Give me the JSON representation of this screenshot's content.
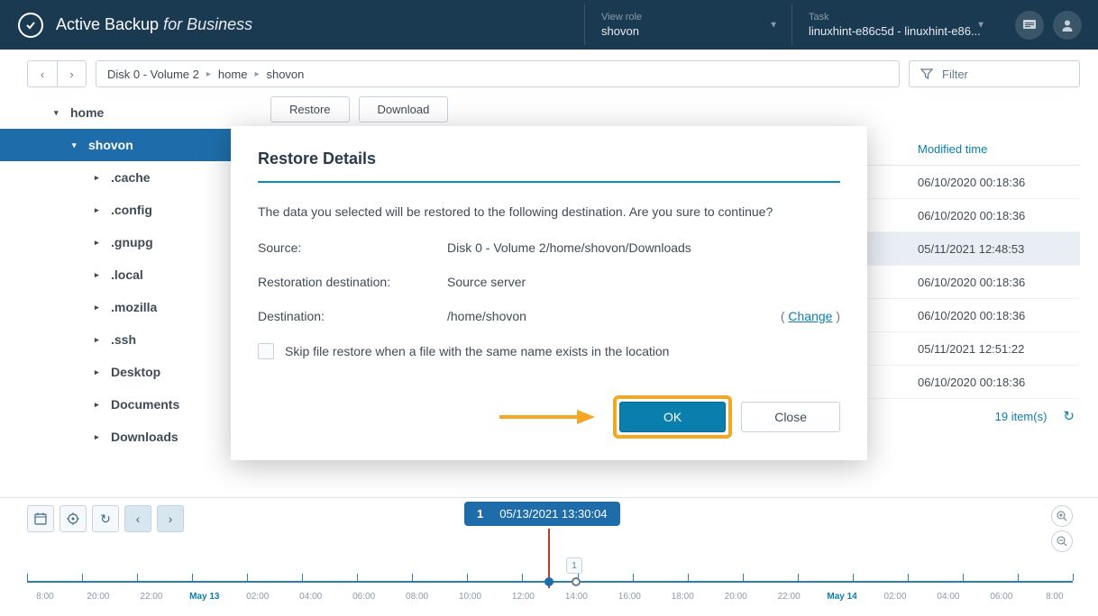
{
  "header": {
    "app_name_main": "Active Backup",
    "app_name_sub": "for Business",
    "view_role_label": "View role",
    "view_role_value": "shovon",
    "task_label": "Task",
    "task_value": "linuxhint-e86c5d - linuxhint-e86..."
  },
  "breadcrumb": {
    "items": [
      "Disk 0 - Volume 2",
      "home",
      "shovon"
    ]
  },
  "filter_label": "Filter",
  "actions": {
    "restore": "Restore",
    "download": "Download"
  },
  "tree": {
    "items": [
      {
        "label": "home",
        "level": 0,
        "expanded": true,
        "selected": false
      },
      {
        "label": "shovon",
        "level": 1,
        "expanded": true,
        "selected": true
      },
      {
        "label": ".cache",
        "level": 2,
        "expanded": false,
        "selected": false
      },
      {
        "label": ".config",
        "level": 2,
        "expanded": false,
        "selected": false
      },
      {
        "label": ".gnupg",
        "level": 2,
        "expanded": false,
        "selected": false
      },
      {
        "label": ".local",
        "level": 2,
        "expanded": false,
        "selected": false
      },
      {
        "label": ".mozilla",
        "level": 2,
        "expanded": false,
        "selected": false
      },
      {
        "label": ".ssh",
        "level": 2,
        "expanded": false,
        "selected": false
      },
      {
        "label": "Desktop",
        "level": 2,
        "expanded": false,
        "selected": false
      },
      {
        "label": "Documents",
        "level": 2,
        "expanded": false,
        "selected": false
      },
      {
        "label": "Downloads",
        "level": 2,
        "expanded": false,
        "selected": false
      }
    ]
  },
  "table": {
    "columns": {
      "modified": "Modified time"
    },
    "rows": [
      {
        "modified": "06/10/2020 00:18:36",
        "highlighted": false
      },
      {
        "modified": "06/10/2020 00:18:36",
        "highlighted": false
      },
      {
        "modified": "05/11/2021 12:48:53",
        "highlighted": true
      },
      {
        "modified": "06/10/2020 00:18:36",
        "highlighted": false
      },
      {
        "modified": "06/10/2020 00:18:36",
        "highlighted": false
      },
      {
        "modified": "05/11/2021 12:51:22",
        "highlighted": false
      },
      {
        "modified": "06/10/2020 00:18:36",
        "highlighted": false
      }
    ],
    "footer_count": "19 item(s)"
  },
  "timeline": {
    "marker_count": "1",
    "marker_time": "05/13/2021 13:30:04",
    "small_tick": "1",
    "labels": [
      "8:00",
      "20:00",
      "22:00",
      "May 13",
      "02:00",
      "04:00",
      "06:00",
      "08:00",
      "10:00",
      "12:00",
      "14:00",
      "16:00",
      "18:00",
      "20:00",
      "22:00",
      "May 14",
      "02:00",
      "04:00",
      "06:00",
      "8:00"
    ],
    "day_indices": [
      3,
      15
    ],
    "accent_color": "#2a7fad",
    "marker_color": "#1e6daa",
    "line_color": "#c0392b"
  },
  "modal": {
    "title": "Restore Details",
    "message": "The data you selected will be restored to the following destination. Are you sure to continue?",
    "source_label": "Source:",
    "source_value": "Disk 0 - Volume 2/home/shovon/Downloads",
    "restdest_label": "Restoration destination:",
    "restdest_value": "Source server",
    "dest_label": "Destination:",
    "dest_value": "/home/shovon",
    "change_label": "Change",
    "skip_label": "Skip file restore when a file with the same name exists in the location",
    "ok": "OK",
    "close": "Close",
    "accent_color": "#0a8fc4",
    "highlight_color": "#f5a623"
  }
}
